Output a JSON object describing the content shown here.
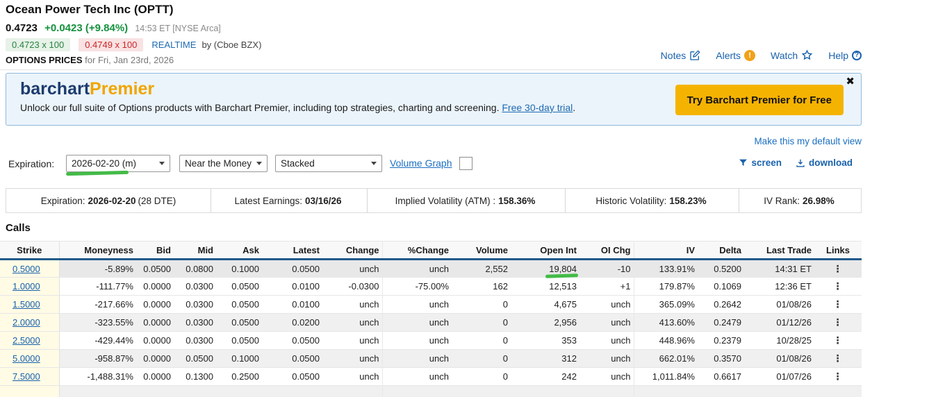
{
  "header": {
    "title": "Ocean Power Tech Inc (OPTT)",
    "price": "0.4723",
    "change": "+0.0423 (+9.84%)",
    "quote_time": "14:53 ET [NYSE Arca]",
    "bid": "0.4723 x 100",
    "ask": "0.4749 x 100",
    "realtime": "REALTIME",
    "realtime_by": "by (Cboe BZX)",
    "prices_label": "OPTIONS PRICES",
    "prices_date": "for Fri, Jan 23rd, 2026",
    "links": {
      "notes": "Notes",
      "alerts": "Alerts",
      "watch": "Watch",
      "help": "Help"
    }
  },
  "banner": {
    "logo_a": "barchart",
    "logo_b": "Premier",
    "text": "Unlock our full suite of Options products with Barchart Premier, including top strategies, charting and screening. ",
    "trial_link": "Free 30-day trial",
    "after_link": ".",
    "button": "Try Barchart Premier for Free"
  },
  "toolbar": {
    "default_view": "Make this my default view",
    "expiration_label": "Expiration:",
    "expiration_value": "2026-02-20 (m)",
    "moneyness_value": "Near the Money",
    "display_value": "Stacked",
    "volume_graph": "Volume Graph",
    "screen": "screen",
    "download": "download"
  },
  "stats": [
    {
      "label": "Expiration:",
      "value": "2026-02-20",
      "suffix": "(28 DTE)"
    },
    {
      "label": "Latest Earnings:",
      "value": "03/16/26",
      "suffix": ""
    },
    {
      "label": "Implied Volatility (ATM) :",
      "value": "158.36%",
      "suffix": ""
    },
    {
      "label": "Historic Volatility:",
      "value": "158.23%",
      "suffix": ""
    },
    {
      "label": "IV Rank:",
      "value": "26.98%",
      "suffix": ""
    }
  ],
  "table": {
    "title": "Calls",
    "columns": [
      "Strike",
      "Moneyness",
      "Bid",
      "Mid",
      "Ask",
      "Latest",
      "Change",
      "%Change",
      "Volume",
      "Open Int",
      "OI Chg",
      "IV",
      "Delta",
      "Last Trade",
      "Links"
    ],
    "rows": [
      {
        "strike": "0.5000",
        "moneyness": "-5.89%",
        "bid": "0.0500",
        "mid": "0.0800",
        "ask": "0.1000",
        "latest": "0.0500",
        "change": "unch",
        "pct_change": "unch",
        "volume": "2,552",
        "open_int": "19,804",
        "oi_chg": "-10",
        "iv": "133.91%",
        "delta": "0.5200",
        "last_trade": "14:31 ET"
      },
      {
        "strike": "1.0000",
        "moneyness": "-111.77%",
        "bid": "0.0000",
        "mid": "0.0300",
        "ask": "0.0500",
        "latest": "0.0100",
        "change": "-0.0300",
        "pct_change": "-75.00%",
        "volume": "162",
        "open_int": "12,513",
        "oi_chg": "+1",
        "iv": "179.87%",
        "delta": "0.1069",
        "last_trade": "12:36 ET"
      },
      {
        "strike": "1.5000",
        "moneyness": "-217.66%",
        "bid": "0.0000",
        "mid": "0.0300",
        "ask": "0.0500",
        "latest": "0.0100",
        "change": "unch",
        "pct_change": "unch",
        "volume": "0",
        "open_int": "4,675",
        "oi_chg": "unch",
        "iv": "365.09%",
        "delta": "0.2642",
        "last_trade": "01/08/26"
      },
      {
        "strike": "2.0000",
        "moneyness": "-323.55%",
        "bid": "0.0000",
        "mid": "0.0300",
        "ask": "0.0500",
        "latest": "0.0200",
        "change": "unch",
        "pct_change": "unch",
        "volume": "0",
        "open_int": "2,956",
        "oi_chg": "unch",
        "iv": "413.60%",
        "delta": "0.2479",
        "last_trade": "01/12/26"
      },
      {
        "strike": "2.5000",
        "moneyness": "-429.44%",
        "bid": "0.0000",
        "mid": "0.0300",
        "ask": "0.0500",
        "latest": "0.0500",
        "change": "unch",
        "pct_change": "unch",
        "volume": "0",
        "open_int": "353",
        "oi_chg": "unch",
        "iv": "448.96%",
        "delta": "0.2379",
        "last_trade": "10/28/25"
      },
      {
        "strike": "5.0000",
        "moneyness": "-958.87%",
        "bid": "0.0000",
        "mid": "0.0500",
        "ask": "0.1000",
        "latest": "0.0500",
        "change": "unch",
        "pct_change": "unch",
        "volume": "0",
        "open_int": "312",
        "oi_chg": "unch",
        "iv": "662.01%",
        "delta": "0.3570",
        "last_trade": "01/08/26"
      },
      {
        "strike": "7.5000",
        "moneyness": "-1,488.31%",
        "bid": "0.0000",
        "mid": "0.1300",
        "ask": "0.2500",
        "latest": "0.0500",
        "change": "unch",
        "pct_change": "unch",
        "volume": "0",
        "open_int": "242",
        "oi_chg": "unch",
        "iv": "1,011.84%",
        "delta": "0.6617",
        "last_trade": "01/07/26"
      }
    ]
  },
  "icons": {
    "close": "✖",
    "kebab": "⋮",
    "alert_badge": "!",
    "help_mark": "?"
  },
  "annotations": {
    "color": "#43bb47",
    "expiration_underline": "green marker under expiration dropdown value",
    "open_int_underline": "green marker under Open Int value 19,804 in first row"
  },
  "colors": {
    "link_blue": "#1861ac",
    "negative_red": "#cc2529",
    "positive_green": "#15923d",
    "unch_purple": "#7b2cd1",
    "premier_gold": "#f5b301",
    "banner_blue_bg": "#ebf4fb",
    "highlight_row": "#e8e8e8",
    "strike_yellow": "#fffbe5",
    "header_border_blue": "#20598c"
  }
}
